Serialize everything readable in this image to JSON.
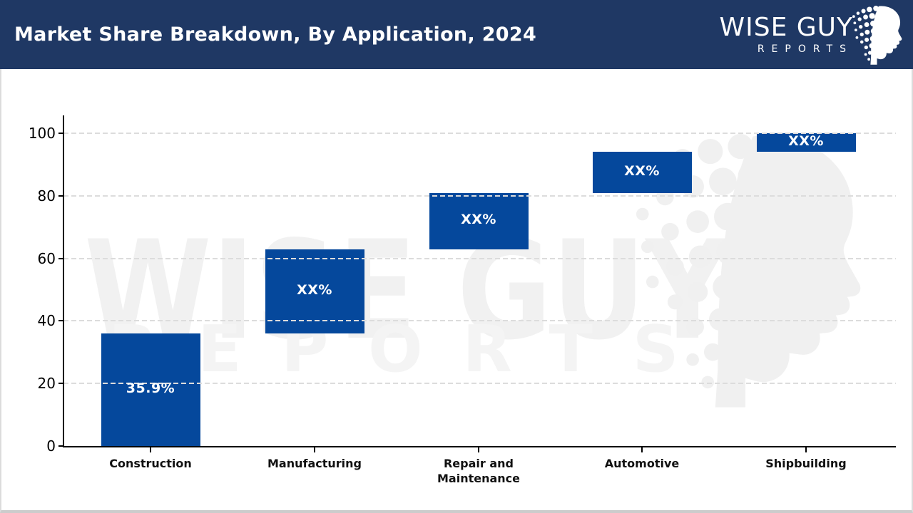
{
  "header": {
    "title": "Market Share Breakdown, By Application, 2024",
    "logo": {
      "wordmark": "WISE GUY",
      "subtext": "REPORTS"
    }
  },
  "watermark": {
    "line1": "WISE GUY",
    "line2": "REPORTS"
  },
  "colors": {
    "header_bg": "#1f3864",
    "bar": "#05489c",
    "grid": "#dcdcdc",
    "axis": "#000000",
    "bar_label_text": "#ffffff",
    "watermark": "#f1f1f1"
  },
  "chart_data": {
    "type": "bar",
    "subtype": "waterfall",
    "title": "Market Share Breakdown, By Application, 2024",
    "categories": [
      "Construction",
      "Manufacturing",
      "Repair and Maintenance",
      "Automotive",
      "Shipbuilding"
    ],
    "values": [
      35.9,
      27.0,
      18.0,
      13.1,
      6.0
    ],
    "segments": [
      {
        "category": "Construction",
        "label_lines": [
          "Construction"
        ],
        "start": 0,
        "end": 35.9,
        "label": "35.9%"
      },
      {
        "category": "Manufacturing",
        "label_lines": [
          "Manufacturing"
        ],
        "start": 35.9,
        "end": 62.9,
        "label": "XX%"
      },
      {
        "category": "Repair and Maintenance",
        "label_lines": [
          "Repair and",
          "Maintenance"
        ],
        "start": 62.9,
        "end": 80.9,
        "label": "XX%"
      },
      {
        "category": "Automotive",
        "label_lines": [
          "Automotive"
        ],
        "start": 80.9,
        "end": 94.0,
        "label": "XX%"
      },
      {
        "category": "Shipbuilding",
        "label_lines": [
          "Shipbuilding"
        ],
        "start": 94.0,
        "end": 100.0,
        "label": "XX%"
      }
    ],
    "xlabel": "",
    "ylabel": "",
    "ylim": [
      0,
      100
    ],
    "yticks": [
      0,
      20,
      40,
      60,
      80,
      100
    ],
    "grid": "horizontal dashed",
    "legend": "none"
  }
}
